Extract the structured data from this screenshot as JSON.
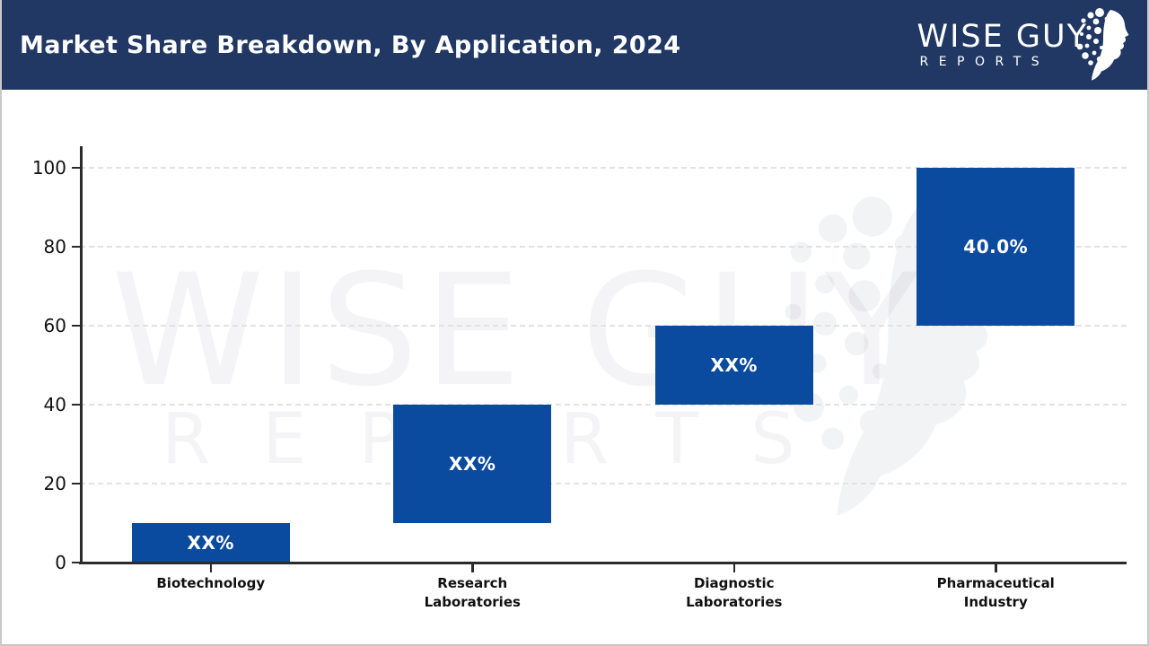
{
  "header": {
    "title": "Market Share Breakdown, By Application, 2024"
  },
  "logo": {
    "wordmark": "WISE GUY",
    "subtext": "REPORTS"
  },
  "watermark": {
    "wordmark": "WISE GUY",
    "subtext": "REPORTS"
  },
  "chart_data": {
    "type": "bar",
    "variant": "floating-waterfall",
    "title": "Market Share Breakdown, By Application, 2024",
    "categories": [
      "Biotechnology",
      "Research Laboratories",
      "Diagnostic Laboratories",
      "Pharmaceutical Industry"
    ],
    "bars": [
      {
        "category": "Biotechnology",
        "start": 0,
        "end": 10,
        "height": 10,
        "label": "XX%"
      },
      {
        "category": "Research Laboratories",
        "start": 10,
        "end": 40,
        "height": 30,
        "label": "XX%"
      },
      {
        "category": "Diagnostic Laboratories",
        "start": 40,
        "end": 60,
        "height": 20,
        "label": "XX%"
      },
      {
        "category": "Pharmaceutical Industry",
        "start": 60,
        "end": 100,
        "height": 40,
        "label": "40.0%"
      }
    ],
    "xlabel": "",
    "ylabel": "",
    "ylim": [
      0,
      100
    ],
    "yticks": [
      0,
      20,
      40,
      60,
      80,
      100
    ],
    "grid": {
      "horizontal": true,
      "style": "dashed",
      "color": "#e2e2e2"
    },
    "legend": null,
    "bar_color": "#0b4b9f",
    "bar_label_color": "#ffffff"
  },
  "colors": {
    "header_bg": "#213864",
    "bar": "#0b4b9f",
    "axis": "#2b2b2b",
    "gridline": "#e2e2e2",
    "page_border": "#c9c9c9"
  }
}
